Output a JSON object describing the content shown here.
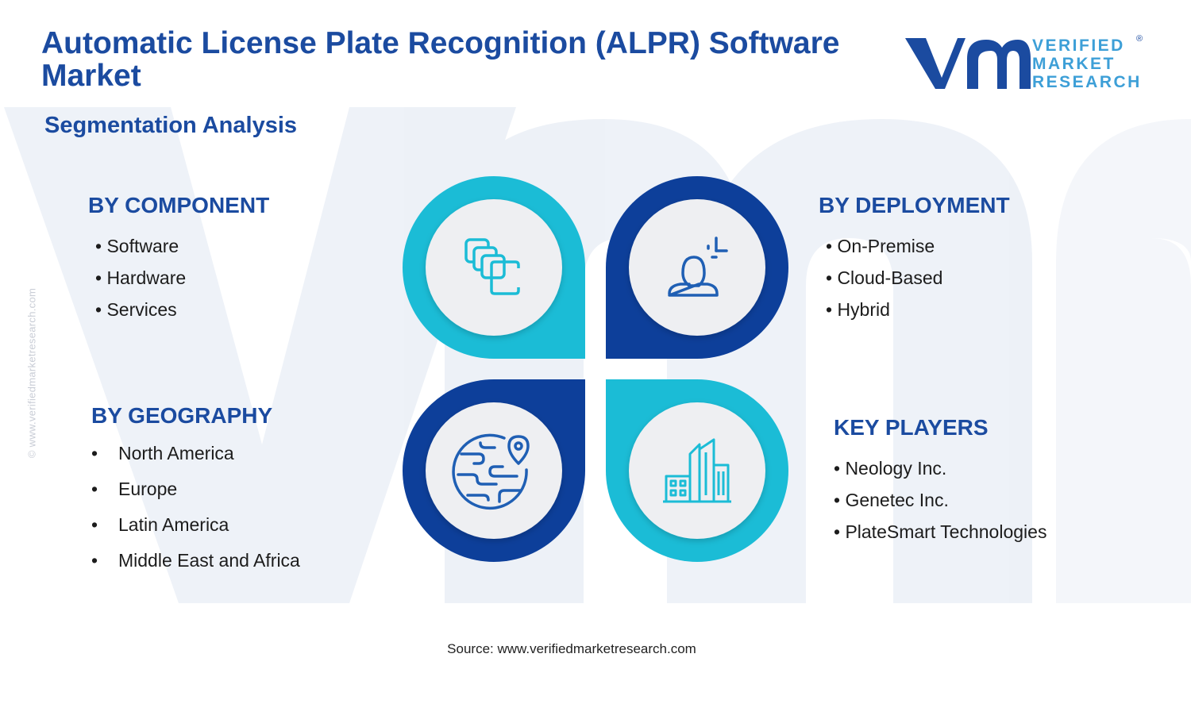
{
  "page": {
    "title": "Automatic License Plate Recognition (ALPR) Software Market",
    "subtitle": "Segmentation Analysis",
    "side_url": "© www.verifiedmarketresearch.com",
    "source": "Source: www.verifiedmarketresearch.com"
  },
  "logo": {
    "line1": "VERIFIED",
    "line2": "MARKET",
    "line3": "RESEARCH",
    "registered": "®"
  },
  "segments": {
    "component": {
      "heading": "BY COMPONENT",
      "items": [
        "• Software",
        "• Hardware",
        "• Services"
      ],
      "icon": "stacked-squares-icon"
    },
    "deployment": {
      "heading": "BY DEPLOYMENT",
      "items": [
        "• On-Premise",
        "• Cloud-Based",
        "• Hybrid"
      ],
      "icon": "user-plus-icon"
    },
    "geography": {
      "heading": "BY GEOGRAPHY",
      "bullet": "•",
      "items": [
        "North America",
        "Europe",
        "Latin America",
        "Middle East and Africa"
      ],
      "icon": "globe-pin-icon"
    },
    "key_players": {
      "heading": "KEY PLAYERS",
      "items": [
        "• Neology Inc.",
        "• Genetec Inc.",
        "• PlateSmart Technologies"
      ],
      "icon": "buildings-icon"
    }
  },
  "colors": {
    "dark_blue": "#1b4ba0",
    "light_blue": "#3d9fd7",
    "cyan": "#1bbcd6",
    "navy": "#0d3f9a",
    "icon_blue": "#1f5fb4",
    "circle_fill": "#eeeff2"
  }
}
